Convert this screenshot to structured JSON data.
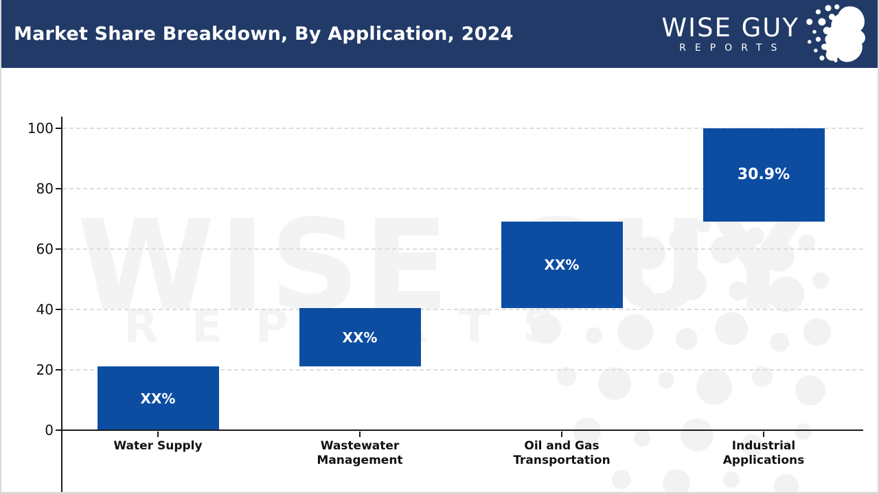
{
  "header": {
    "title": "Market Share Breakdown, By Application, 2024",
    "logo_line1": "WISE GUY",
    "logo_line2": "REPORTS"
  },
  "watermark": {
    "line1": "WISE GUY",
    "line2": "REPORTS"
  },
  "chart_data": {
    "type": "bar",
    "variant": "waterfall-floating-bars",
    "title": "Market Share Breakdown, By Application, 2024",
    "categories": [
      "Water Supply",
      "Wastewater Management",
      "Oil and Gas Transportation",
      "Industrial Applications"
    ],
    "category_lines": [
      [
        "Water Supply"
      ],
      [
        "Wastewater",
        "Management"
      ],
      [
        "Oil and Gas",
        "Transportation"
      ],
      [
        "Industrial",
        "Applications"
      ]
    ],
    "segments": [
      {
        "category": "Water Supply",
        "start": 0,
        "end": 21.0,
        "value": 21.0,
        "label": "XX%"
      },
      {
        "category": "Wastewater Management",
        "start": 21.0,
        "end": 40.4,
        "value": 19.4,
        "label": "XX%"
      },
      {
        "category": "Oil and Gas Transportation",
        "start": 40.4,
        "end": 69.1,
        "value": 28.7,
        "label": "XX%"
      },
      {
        "category": "Industrial Applications",
        "start": 69.1,
        "end": 100.0,
        "value": 30.9,
        "label": "30.9%"
      }
    ],
    "xlabel": "",
    "ylabel": "",
    "ylim": [
      0,
      100
    ],
    "yticks": [
      0,
      20,
      40,
      60,
      80,
      100
    ],
    "grid": "horizontal-dashed",
    "legend": "none",
    "colors": {
      "bar": "#0C4DA2",
      "bar_label": "#FFFFFF",
      "axis": "#1A1A1A",
      "gridline": "#DCDCDC",
      "header_bg": "#213A68",
      "watermark": "#F3F3F3"
    }
  }
}
